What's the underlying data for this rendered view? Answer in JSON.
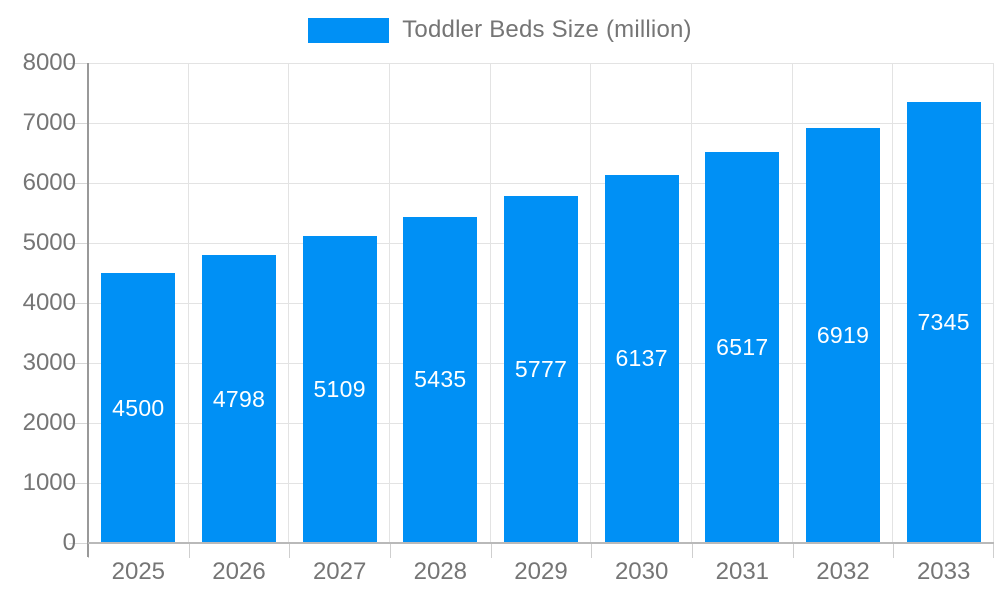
{
  "legend": {
    "label": "Toddler Beds Size (million)"
  },
  "chart_data": {
    "type": "bar",
    "title": "",
    "xlabel": "",
    "ylabel": "",
    "categories": [
      "2025",
      "2026",
      "2027",
      "2028",
      "2029",
      "2030",
      "2031",
      "2032",
      "2033"
    ],
    "series": [
      {
        "name": "Toddler Beds Size (million)",
        "values": [
          4500,
          4798,
          5109,
          5435,
          5777,
          6137,
          6517,
          6919,
          7345
        ]
      }
    ],
    "value_labels_shown": true,
    "ylim": [
      0,
      8000
    ],
    "ytick_step": 1000,
    "ytick_labels": [
      "0",
      "1000",
      "2000",
      "3000",
      "4000",
      "5000",
      "6000",
      "7000",
      "8000"
    ],
    "grid": "on",
    "legend_position": "top-center",
    "colors": {
      "bar": "#0090f5",
      "value_label": "#ffffff",
      "axis_text": "#757575",
      "gridline": "#e3e3e3",
      "y_axis_line": "#999999",
      "x_axis_line": "#b9b9b9"
    }
  }
}
